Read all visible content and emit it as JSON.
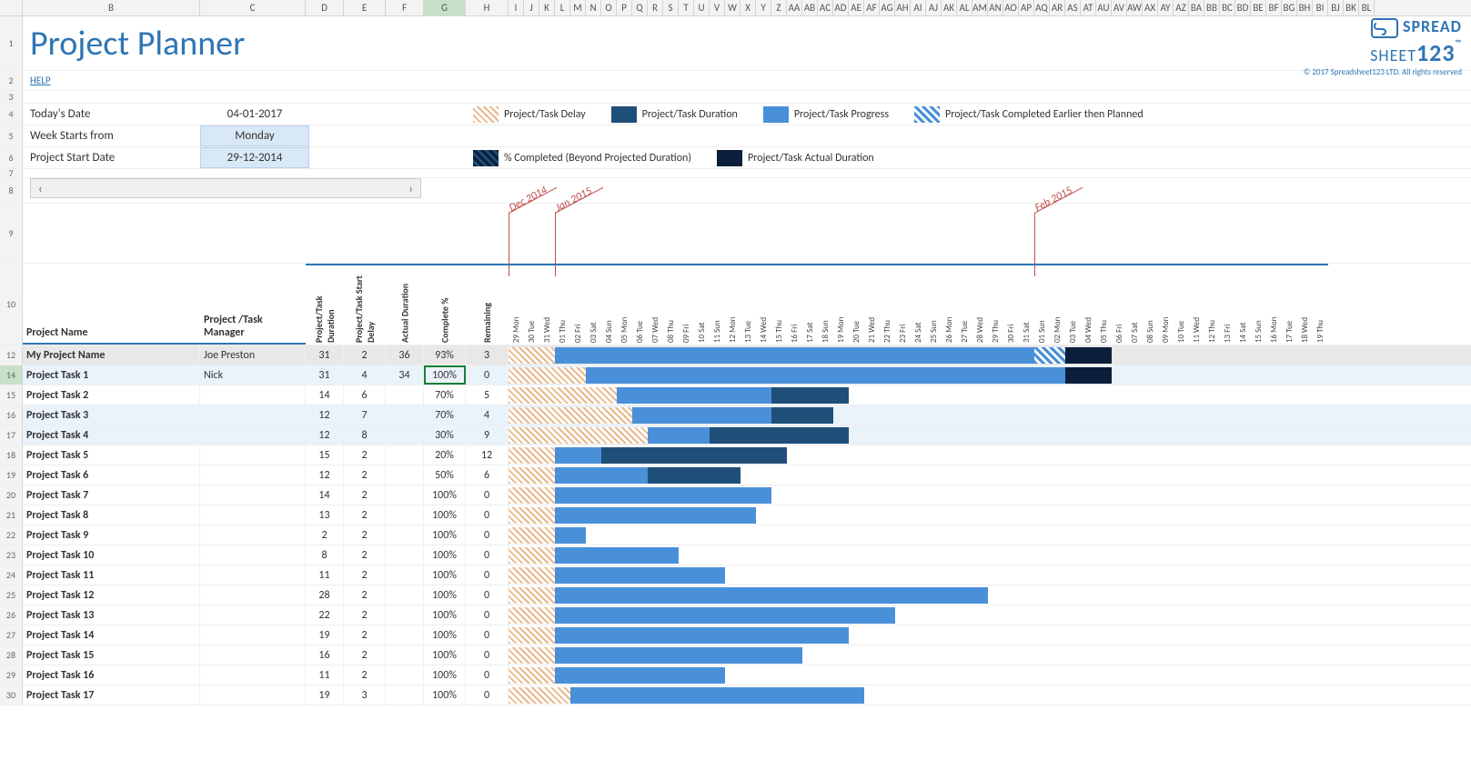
{
  "title": "Project Planner",
  "help_label": "HELP",
  "copyright": "© 2017 Spreadsheet123 LTD. All rights reserved",
  "logo": {
    "text1": "SPREAD",
    "text2": "SHEET",
    "num": "123",
    "tm": "™"
  },
  "info": {
    "today_label": "Today's Date",
    "today_value": "04-01-2017",
    "weekstart_label": "Week Starts from",
    "weekstart_value": "Monday",
    "startdate_label": "Project Start Date",
    "startdate_value": "29-12-2014"
  },
  "legend": {
    "delay": "Project/Task Delay",
    "duration": "Project/Task Duration",
    "progress": "Project/Task Progress",
    "earlier": "Project/Task Completed Earlier then Planned",
    "beyond": "% Completed (Beyond Projected Duration)",
    "actual": "Project/Task Actual Duration"
  },
  "columns_hdr": {
    "name": "Project Name",
    "manager": "Project /Task Manager",
    "ptdur": "Project/Task Duration",
    "ptdelay": "Project/Task Start Delay",
    "actdur": "Actual Duration",
    "complete": "Complete %",
    "remaining": "Remaining"
  },
  "months": [
    {
      "label": "Dec 2014",
      "col": 0
    },
    {
      "label": "Jan 2015",
      "col": 3
    },
    {
      "label": "Feb 2015",
      "col": 34
    }
  ],
  "days": [
    "29 Mon",
    "30 Tue",
    "31 Wed",
    "01 Thu",
    "02 Fri",
    "03 Sat",
    "04 Sun",
    "05 Mon",
    "06 Tue",
    "07 Wed",
    "08 Thu",
    "09 Fri",
    "10 Sat",
    "11 Sun",
    "12 Mon",
    "13 Tue",
    "14 Wed",
    "15 Thu",
    "16 Fri",
    "17 Sat",
    "18 Sun",
    "19 Mon",
    "20 Tue",
    "21 Wed",
    "22 Thu",
    "23 Fri",
    "24 Sat",
    "25 Sun",
    "26 Mon",
    "27 Tue",
    "28 Wed",
    "29 Thu",
    "30 Fri",
    "31 Sat",
    "01 Sun",
    "02 Mon",
    "03 Tue",
    "04 Wed",
    "05 Thu",
    "06 Fri",
    "07 Sat",
    "08 Sun",
    "09 Mon",
    "10 Tue",
    "11 Wed",
    "12 Thu",
    "13 Fri",
    "14 Sat",
    "15 Sun",
    "16 Mon",
    "17 Tue",
    "18 Wed",
    "19 Thu"
  ],
  "excel_cols": [
    "B",
    "C",
    "D",
    "E",
    "F",
    "G",
    "H",
    "I",
    "J",
    "K",
    "L",
    "M",
    "N",
    "O",
    "P",
    "Q",
    "R",
    "S",
    "T",
    "U",
    "V",
    "W",
    "X",
    "Y",
    "Z",
    "AA",
    "AB",
    "AC",
    "AD",
    "AE",
    "AF",
    "AG",
    "AH",
    "AI",
    "AJ",
    "AK",
    "AL",
    "AM",
    "AN",
    "AO",
    "AP",
    "AQ",
    "AR",
    "AS",
    "AT",
    "AU",
    "AV",
    "AW",
    "AX",
    "AY",
    "AZ",
    "BA",
    "BB",
    "BC",
    "BD",
    "BE",
    "BF",
    "BG",
    "BH",
    "BI",
    "BJ",
    "BK",
    "BL"
  ],
  "layout": {
    "col_widths": {
      "B": 195,
      "C": 116,
      "D": 42,
      "E": 46,
      "F": 42,
      "G": 46,
      "H": 47,
      "day": 17
    },
    "gantt_start_x": 0,
    "selected_col": "G",
    "selected_row": 14
  },
  "colors": {
    "delay_pat": "#e8b88a",
    "duration": "#1f4e79",
    "progress": "#4a90d9",
    "actual": "#0b1f3a",
    "title": "#2f75b5",
    "month": "#c0504d",
    "row_alt": "#eaf2fa"
  },
  "rows": [
    {
      "rn": 12,
      "proj": true,
      "name": "My Project Name",
      "mgr": "Joe Preston",
      "dur": 31,
      "delay": 2,
      "actdur": 36,
      "complete": "93%",
      "remain": 3,
      "bars": [
        {
          "t": "delay",
          "s": 0,
          "l": 3
        },
        {
          "t": "prog",
          "s": 3,
          "l": 31
        },
        {
          "t": "earlier",
          "s": 34,
          "l": 2
        },
        {
          "t": "actual",
          "s": 36,
          "l": 3
        }
      ]
    },
    {
      "rn": 14,
      "alt": true,
      "name": "Project Task 1",
      "mgr": "Nick",
      "dur": 31,
      "delay": 4,
      "actdur": 34,
      "complete": "100%",
      "remain": 0,
      "selG": true,
      "bars": [
        {
          "t": "delay",
          "s": 0,
          "l": 5
        },
        {
          "t": "prog",
          "s": 5,
          "l": 31
        },
        {
          "t": "actual",
          "s": 36,
          "l": 3
        }
      ]
    },
    {
      "rn": 15,
      "name": "Project Task 2",
      "mgr": "",
      "dur": 14,
      "delay": 6,
      "actdur": "",
      "complete": "70%",
      "remain": 5,
      "bars": [
        {
          "t": "delay",
          "s": 0,
          "l": 7
        },
        {
          "t": "prog",
          "s": 7,
          "l": 10
        },
        {
          "t": "dur",
          "s": 17,
          "l": 5
        }
      ]
    },
    {
      "rn": 16,
      "alt": true,
      "name": "Project Task 3",
      "mgr": "",
      "dur": 12,
      "delay": 7,
      "actdur": "",
      "complete": "70%",
      "remain": 4,
      "bars": [
        {
          "t": "delay",
          "s": 0,
          "l": 8
        },
        {
          "t": "prog",
          "s": 8,
          "l": 9
        },
        {
          "t": "dur",
          "s": 17,
          "l": 4
        }
      ]
    },
    {
      "rn": 17,
      "alt": true,
      "name": "Project Task 4",
      "mgr": "",
      "dur": 12,
      "delay": 8,
      "actdur": "",
      "complete": "30%",
      "remain": 9,
      "bars": [
        {
          "t": "delay",
          "s": 0,
          "l": 9
        },
        {
          "t": "prog",
          "s": 9,
          "l": 4
        },
        {
          "t": "dur",
          "s": 13,
          "l": 9
        }
      ]
    },
    {
      "rn": 18,
      "name": "Project Task 5",
      "mgr": "",
      "dur": 15,
      "delay": 2,
      "actdur": "",
      "complete": "20%",
      "remain": 12,
      "bars": [
        {
          "t": "delay",
          "s": 0,
          "l": 3
        },
        {
          "t": "prog",
          "s": 3,
          "l": 3
        },
        {
          "t": "dur",
          "s": 6,
          "l": 12
        }
      ]
    },
    {
      "rn": 19,
      "name": "Project Task 6",
      "mgr": "",
      "dur": 12,
      "delay": 2,
      "actdur": "",
      "complete": "50%",
      "remain": 6,
      "bars": [
        {
          "t": "delay",
          "s": 0,
          "l": 3
        },
        {
          "t": "prog",
          "s": 3,
          "l": 6
        },
        {
          "t": "dur",
          "s": 9,
          "l": 6
        }
      ]
    },
    {
      "rn": 20,
      "name": "Project Task 7",
      "mgr": "",
      "dur": 14,
      "delay": 2,
      "actdur": "",
      "complete": "100%",
      "remain": 0,
      "bars": [
        {
          "t": "delay",
          "s": 0,
          "l": 3
        },
        {
          "t": "prog",
          "s": 3,
          "l": 14
        }
      ]
    },
    {
      "rn": 21,
      "name": "Project Task 8",
      "mgr": "",
      "dur": 13,
      "delay": 2,
      "actdur": "",
      "complete": "100%",
      "remain": 0,
      "bars": [
        {
          "t": "delay",
          "s": 0,
          "l": 3
        },
        {
          "t": "prog",
          "s": 3,
          "l": 13
        }
      ]
    },
    {
      "rn": 22,
      "name": "Project Task 9",
      "mgr": "",
      "dur": 2,
      "delay": 2,
      "actdur": "",
      "complete": "100%",
      "remain": 0,
      "bars": [
        {
          "t": "delay",
          "s": 0,
          "l": 3
        },
        {
          "t": "prog",
          "s": 3,
          "l": 2
        }
      ]
    },
    {
      "rn": 23,
      "name": "Project Task 10",
      "mgr": "",
      "dur": 8,
      "delay": 2,
      "actdur": "",
      "complete": "100%",
      "remain": 0,
      "bars": [
        {
          "t": "delay",
          "s": 0,
          "l": 3
        },
        {
          "t": "prog",
          "s": 3,
          "l": 8
        }
      ]
    },
    {
      "rn": 24,
      "name": "Project Task 11",
      "mgr": "",
      "dur": 11,
      "delay": 2,
      "actdur": "",
      "complete": "100%",
      "remain": 0,
      "bars": [
        {
          "t": "delay",
          "s": 0,
          "l": 3
        },
        {
          "t": "prog",
          "s": 3,
          "l": 11
        }
      ]
    },
    {
      "rn": 25,
      "name": "Project Task 12",
      "mgr": "",
      "dur": 28,
      "delay": 2,
      "actdur": "",
      "complete": "100%",
      "remain": 0,
      "bars": [
        {
          "t": "delay",
          "s": 0,
          "l": 3
        },
        {
          "t": "prog",
          "s": 3,
          "l": 28
        }
      ]
    },
    {
      "rn": 26,
      "name": "Project Task 13",
      "mgr": "",
      "dur": 22,
      "delay": 2,
      "actdur": "",
      "complete": "100%",
      "remain": 0,
      "bars": [
        {
          "t": "delay",
          "s": 0,
          "l": 3
        },
        {
          "t": "prog",
          "s": 3,
          "l": 22
        }
      ]
    },
    {
      "rn": 27,
      "name": "Project Task 14",
      "mgr": "",
      "dur": 19,
      "delay": 2,
      "actdur": "",
      "complete": "100%",
      "remain": 0,
      "bars": [
        {
          "t": "delay",
          "s": 0,
          "l": 3
        },
        {
          "t": "prog",
          "s": 3,
          "l": 19
        }
      ]
    },
    {
      "rn": 28,
      "name": "Project Task 15",
      "mgr": "",
      "dur": 16,
      "delay": 2,
      "actdur": "",
      "complete": "100%",
      "remain": 0,
      "bars": [
        {
          "t": "delay",
          "s": 0,
          "l": 3
        },
        {
          "t": "prog",
          "s": 3,
          "l": 16
        }
      ]
    },
    {
      "rn": 29,
      "name": "Project Task 16",
      "mgr": "",
      "dur": 11,
      "delay": 2,
      "actdur": "",
      "complete": "100%",
      "remain": 0,
      "bars": [
        {
          "t": "delay",
          "s": 0,
          "l": 3
        },
        {
          "t": "prog",
          "s": 3,
          "l": 11
        }
      ]
    },
    {
      "rn": 30,
      "name": "Project Task 17",
      "mgr": "",
      "dur": 19,
      "delay": 3,
      "actdur": "",
      "complete": "100%",
      "remain": 0,
      "bars": [
        {
          "t": "delay",
          "s": 0,
          "l": 4
        },
        {
          "t": "prog",
          "s": 4,
          "l": 19
        }
      ]
    }
  ]
}
